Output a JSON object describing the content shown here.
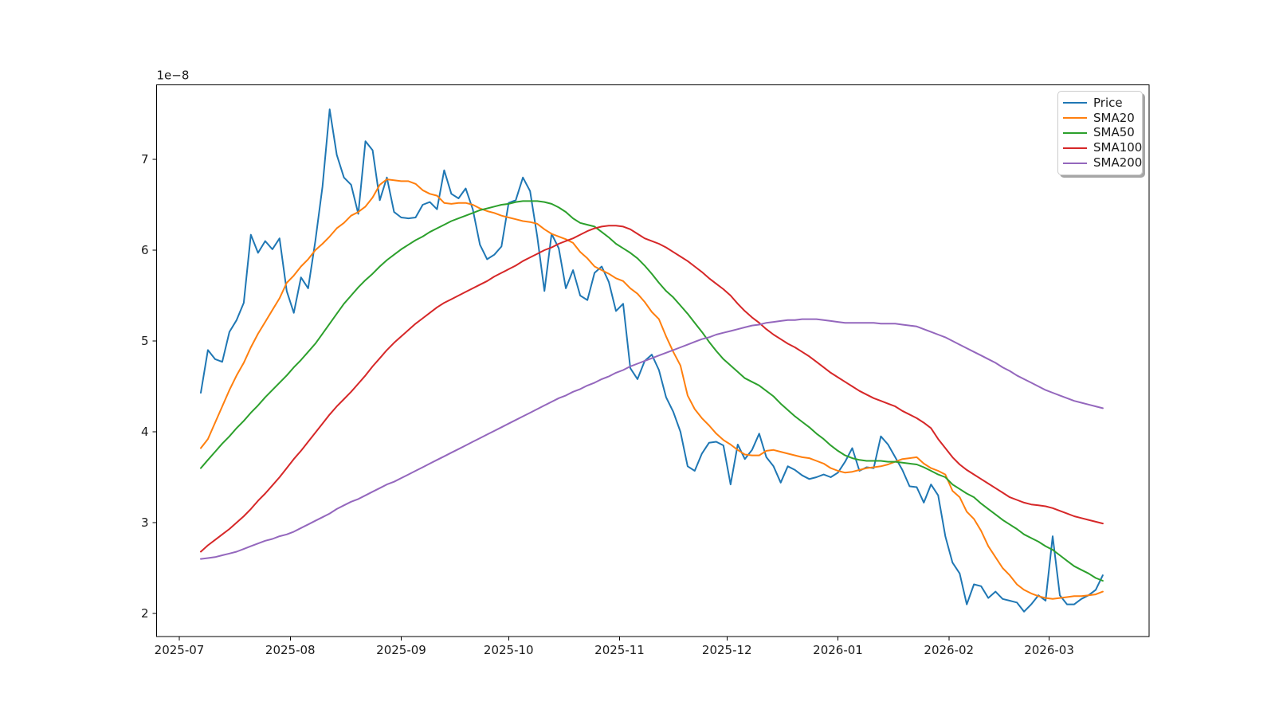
{
  "figure": {
    "background": "#ffffff"
  },
  "axes": {
    "offset_label": "1e−8",
    "x_tick_labels": [
      "2025-07",
      "2025-08",
      "2025-09",
      "2025-10",
      "2025-11",
      "2025-12",
      "2026-01",
      "2026-02",
      "2026-03"
    ],
    "x_tick_day_offsets": [
      0,
      31,
      62,
      92,
      123,
      153,
      184,
      215,
      243
    ],
    "y_tick_labels": [
      "2",
      "3",
      "4",
      "5",
      "6",
      "7"
    ],
    "y_tick_values": [
      2,
      3,
      4,
      5,
      6,
      7
    ],
    "grid": false
  },
  "legend": {
    "position": "upper-right",
    "entries": [
      {
        "label": "Price",
        "color": "#1f77b4"
      },
      {
        "label": "SMA20",
        "color": "#ff7f0e"
      },
      {
        "label": "SMA50",
        "color": "#2ca02c"
      },
      {
        "label": "SMA100",
        "color": "#d62728"
      },
      {
        "label": "SMA200",
        "color": "#9467bd"
      }
    ]
  },
  "chart_data": {
    "type": "line",
    "title": "",
    "xlabel": "",
    "ylabel": "",
    "y_unit_multiplier": "1e-8",
    "x_unit": "days from 2025-07 tick",
    "xlim_days": [
      -6.2,
      270.9
    ],
    "ylim": [
      1.75,
      7.82
    ],
    "series_start_day": 6,
    "series_step_days": 2,
    "series": [
      {
        "name": "Price",
        "color": "#1f77b4",
        "values": [
          4.43,
          4.9,
          4.8,
          4.77,
          5.1,
          5.23,
          5.42,
          6.17,
          5.97,
          6.1,
          6.01,
          6.13,
          5.55,
          5.31,
          5.7,
          5.58,
          6.1,
          6.7,
          7.55,
          7.05,
          6.8,
          6.72,
          6.4,
          7.2,
          7.1,
          6.55,
          6.8,
          6.42,
          6.36,
          6.35,
          6.36,
          6.5,
          6.53,
          6.45,
          6.88,
          6.62,
          6.57,
          6.68,
          6.45,
          6.06,
          5.9,
          5.95,
          6.04,
          6.52,
          6.55,
          6.8,
          6.65,
          6.15,
          5.55,
          6.18,
          6.02,
          5.58,
          5.78,
          5.5,
          5.45,
          5.75,
          5.82,
          5.65,
          5.33,
          5.41,
          4.7,
          4.58,
          4.78,
          4.85,
          4.68,
          4.38,
          4.22,
          4.0,
          3.62,
          3.57,
          3.76,
          3.88,
          3.89,
          3.85,
          3.42,
          3.86,
          3.7,
          3.8,
          3.98,
          3.72,
          3.62,
          3.44,
          3.62,
          3.58,
          3.52,
          3.48,
          3.5,
          3.53,
          3.5,
          3.55,
          3.67,
          3.82,
          3.57,
          3.61,
          3.6,
          3.95,
          3.86,
          3.72,
          3.58,
          3.4,
          3.39,
          3.22,
          3.42,
          3.3,
          2.85,
          2.56,
          2.44,
          2.1,
          2.32,
          2.3,
          2.17,
          2.24,
          2.16,
          2.14,
          2.12,
          2.02,
          2.1,
          2.2,
          2.14,
          2.85,
          2.2,
          2.1,
          2.1,
          2.16,
          2.2,
          2.26,
          2.42
        ]
      },
      {
        "name": "SMA20",
        "color": "#ff7f0e",
        "values": [
          3.82,
          3.92,
          4.1,
          4.28,
          4.46,
          4.62,
          4.76,
          4.93,
          5.08,
          5.21,
          5.34,
          5.47,
          5.64,
          5.72,
          5.82,
          5.9,
          6.0,
          6.07,
          6.15,
          6.24,
          6.3,
          6.38,
          6.42,
          6.48,
          6.58,
          6.72,
          6.78,
          6.77,
          6.76,
          6.76,
          6.73,
          6.66,
          6.62,
          6.6,
          6.52,
          6.51,
          6.52,
          6.52,
          6.5,
          6.46,
          6.43,
          6.41,
          6.38,
          6.36,
          6.34,
          6.32,
          6.31,
          6.29,
          6.23,
          6.18,
          6.15,
          6.12,
          6.08,
          5.98,
          5.91,
          5.82,
          5.78,
          5.74,
          5.69,
          5.66,
          5.58,
          5.52,
          5.43,
          5.32,
          5.24,
          5.05,
          4.88,
          4.73,
          4.4,
          4.25,
          4.15,
          4.07,
          3.98,
          3.91,
          3.86,
          3.8,
          3.75,
          3.74,
          3.74,
          3.79,
          3.8,
          3.78,
          3.76,
          3.74,
          3.72,
          3.71,
          3.68,
          3.65,
          3.6,
          3.57,
          3.55,
          3.56,
          3.58,
          3.6,
          3.61,
          3.62,
          3.64,
          3.67,
          3.7,
          3.71,
          3.72,
          3.65,
          3.6,
          3.57,
          3.53,
          3.35,
          3.28,
          3.12,
          3.04,
          2.91,
          2.74,
          2.62,
          2.5,
          2.42,
          2.32,
          2.26,
          2.22,
          2.19,
          2.17,
          2.16,
          2.17,
          2.18,
          2.19,
          2.19,
          2.2,
          2.21,
          2.24
        ]
      },
      {
        "name": "SMA50",
        "color": "#2ca02c",
        "values": [
          3.6,
          3.69,
          3.78,
          3.87,
          3.95,
          4.04,
          4.12,
          4.21,
          4.29,
          4.38,
          4.46,
          4.54,
          4.62,
          4.71,
          4.79,
          4.88,
          4.97,
          5.08,
          5.19,
          5.3,
          5.41,
          5.5,
          5.59,
          5.67,
          5.74,
          5.82,
          5.89,
          5.95,
          6.01,
          6.06,
          6.11,
          6.15,
          6.2,
          6.24,
          6.28,
          6.32,
          6.35,
          6.38,
          6.41,
          6.44,
          6.46,
          6.48,
          6.5,
          6.51,
          6.53,
          6.54,
          6.54,
          6.54,
          6.53,
          6.51,
          6.47,
          6.42,
          6.35,
          6.3,
          6.28,
          6.26,
          6.2,
          6.14,
          6.07,
          6.02,
          5.97,
          5.91,
          5.83,
          5.74,
          5.64,
          5.55,
          5.48,
          5.39,
          5.3,
          5.2,
          5.1,
          4.99,
          4.89,
          4.8,
          4.73,
          4.66,
          4.59,
          4.55,
          4.51,
          4.45,
          4.39,
          4.31,
          4.24,
          4.17,
          4.11,
          4.05,
          3.98,
          3.92,
          3.85,
          3.79,
          3.74,
          3.71,
          3.69,
          3.68,
          3.68,
          3.68,
          3.67,
          3.67,
          3.66,
          3.65,
          3.64,
          3.61,
          3.57,
          3.53,
          3.5,
          3.42,
          3.37,
          3.32,
          3.28,
          3.21,
          3.15,
          3.09,
          3.03,
          2.98,
          2.93,
          2.87,
          2.83,
          2.79,
          2.74,
          2.7,
          2.64,
          2.58,
          2.52,
          2.48,
          2.44,
          2.39,
          2.36
        ]
      },
      {
        "name": "SMA100",
        "color": "#d62728",
        "values": [
          2.68,
          2.75,
          2.81,
          2.87,
          2.93,
          3.0,
          3.07,
          3.15,
          3.24,
          3.32,
          3.41,
          3.5,
          3.6,
          3.7,
          3.79,
          3.89,
          3.99,
          4.09,
          4.19,
          4.28,
          4.36,
          4.44,
          4.53,
          4.62,
          4.72,
          4.81,
          4.9,
          4.98,
          5.05,
          5.12,
          5.19,
          5.25,
          5.31,
          5.37,
          5.42,
          5.46,
          5.5,
          5.54,
          5.58,
          5.62,
          5.66,
          5.71,
          5.75,
          5.79,
          5.83,
          5.88,
          5.92,
          5.96,
          6.0,
          6.03,
          6.07,
          6.1,
          6.13,
          6.17,
          6.21,
          6.24,
          6.26,
          6.27,
          6.27,
          6.26,
          6.23,
          6.18,
          6.13,
          6.1,
          6.07,
          6.03,
          5.98,
          5.93,
          5.88,
          5.82,
          5.76,
          5.69,
          5.63,
          5.57,
          5.5,
          5.41,
          5.33,
          5.26,
          5.2,
          5.13,
          5.07,
          5.02,
          4.97,
          4.93,
          4.88,
          4.83,
          4.77,
          4.71,
          4.65,
          4.6,
          4.55,
          4.5,
          4.45,
          4.41,
          4.37,
          4.34,
          4.31,
          4.28,
          4.23,
          4.19,
          4.15,
          4.1,
          4.04,
          3.92,
          3.82,
          3.72,
          3.64,
          3.58,
          3.53,
          3.48,
          3.43,
          3.38,
          3.33,
          3.28,
          3.25,
          3.22,
          3.2,
          3.19,
          3.18,
          3.16,
          3.13,
          3.1,
          3.07,
          3.05,
          3.03,
          3.01,
          2.99
        ]
      },
      {
        "name": "SMA200",
        "color": "#9467bd",
        "values": [
          2.6,
          2.61,
          2.62,
          2.64,
          2.66,
          2.68,
          2.71,
          2.74,
          2.77,
          2.8,
          2.82,
          2.85,
          2.87,
          2.9,
          2.94,
          2.98,
          3.02,
          3.06,
          3.1,
          3.15,
          3.19,
          3.23,
          3.26,
          3.3,
          3.34,
          3.38,
          3.42,
          3.45,
          3.49,
          3.53,
          3.57,
          3.61,
          3.65,
          3.69,
          3.73,
          3.77,
          3.81,
          3.85,
          3.89,
          3.93,
          3.97,
          4.01,
          4.05,
          4.09,
          4.13,
          4.17,
          4.21,
          4.25,
          4.29,
          4.33,
          4.37,
          4.4,
          4.44,
          4.47,
          4.51,
          4.54,
          4.58,
          4.61,
          4.65,
          4.68,
          4.72,
          4.75,
          4.78,
          4.81,
          4.84,
          4.87,
          4.9,
          4.93,
          4.96,
          4.99,
          5.02,
          5.04,
          5.07,
          5.09,
          5.11,
          5.13,
          5.15,
          5.17,
          5.18,
          5.2,
          5.21,
          5.22,
          5.23,
          5.23,
          5.24,
          5.24,
          5.24,
          5.23,
          5.22,
          5.21,
          5.2,
          5.2,
          5.2,
          5.2,
          5.2,
          5.19,
          5.19,
          5.19,
          5.18,
          5.17,
          5.16,
          5.13,
          5.1,
          5.07,
          5.04,
          5.0,
          4.96,
          4.92,
          4.88,
          4.84,
          4.8,
          4.76,
          4.71,
          4.67,
          4.62,
          4.58,
          4.54,
          4.5,
          4.46,
          4.43,
          4.4,
          4.37,
          4.34,
          4.32,
          4.3,
          4.28,
          4.26
        ]
      }
    ]
  }
}
